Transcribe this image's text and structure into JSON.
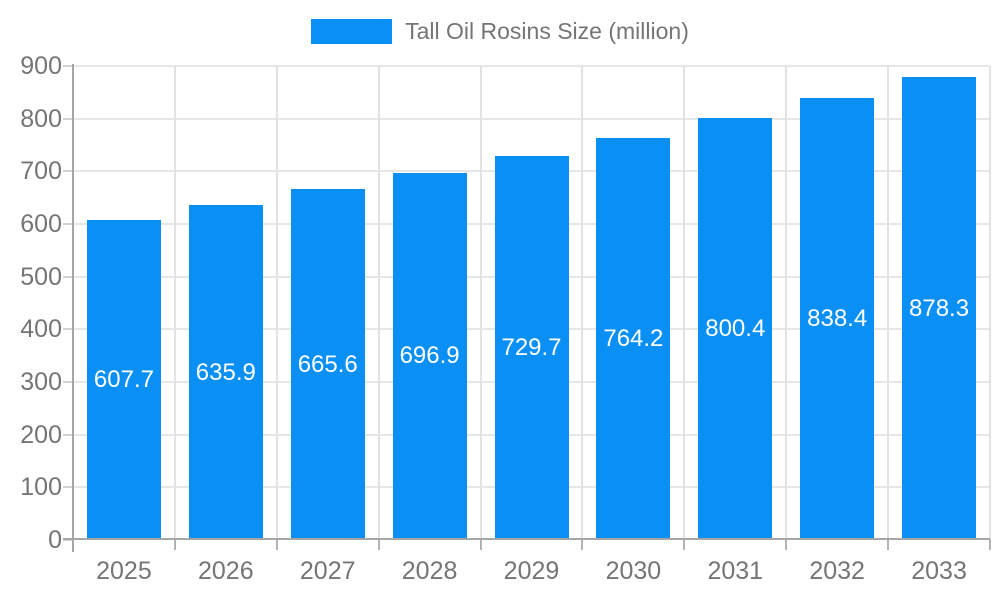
{
  "legend": {
    "label": "Tall Oil Rosins Size (million)"
  },
  "chart_data": {
    "type": "bar",
    "title": "Tall Oil Rosins Size (million)",
    "series_name": "Tall Oil Rosins Size (million)",
    "categories": [
      "2025",
      "2026",
      "2027",
      "2028",
      "2029",
      "2030",
      "2031",
      "2032",
      "2033"
    ],
    "values": [
      607.7,
      635.9,
      665.6,
      696.9,
      729.7,
      764.2,
      800.4,
      838.4,
      878.3
    ],
    "value_labels": [
      "607.7",
      "635.9",
      "665.6",
      "696.9",
      "729.7",
      "764.2",
      "800.4",
      "838.4",
      "878.3"
    ],
    "ytick_labels": [
      "0",
      "100",
      "200",
      "300",
      "400",
      "500",
      "600",
      "700",
      "800",
      "900"
    ],
    "ylim": [
      0,
      900
    ],
    "ytick_interval": 100,
    "xlabel": "",
    "ylabel": "",
    "grid": true,
    "legend_position": "top",
    "colors": {
      "bar": "#0a90f5",
      "bar_value_text": "#ffffff",
      "axis_text": "#757575",
      "axis_line": "#a6a6a6",
      "gridline": "#e6e6e6"
    }
  }
}
